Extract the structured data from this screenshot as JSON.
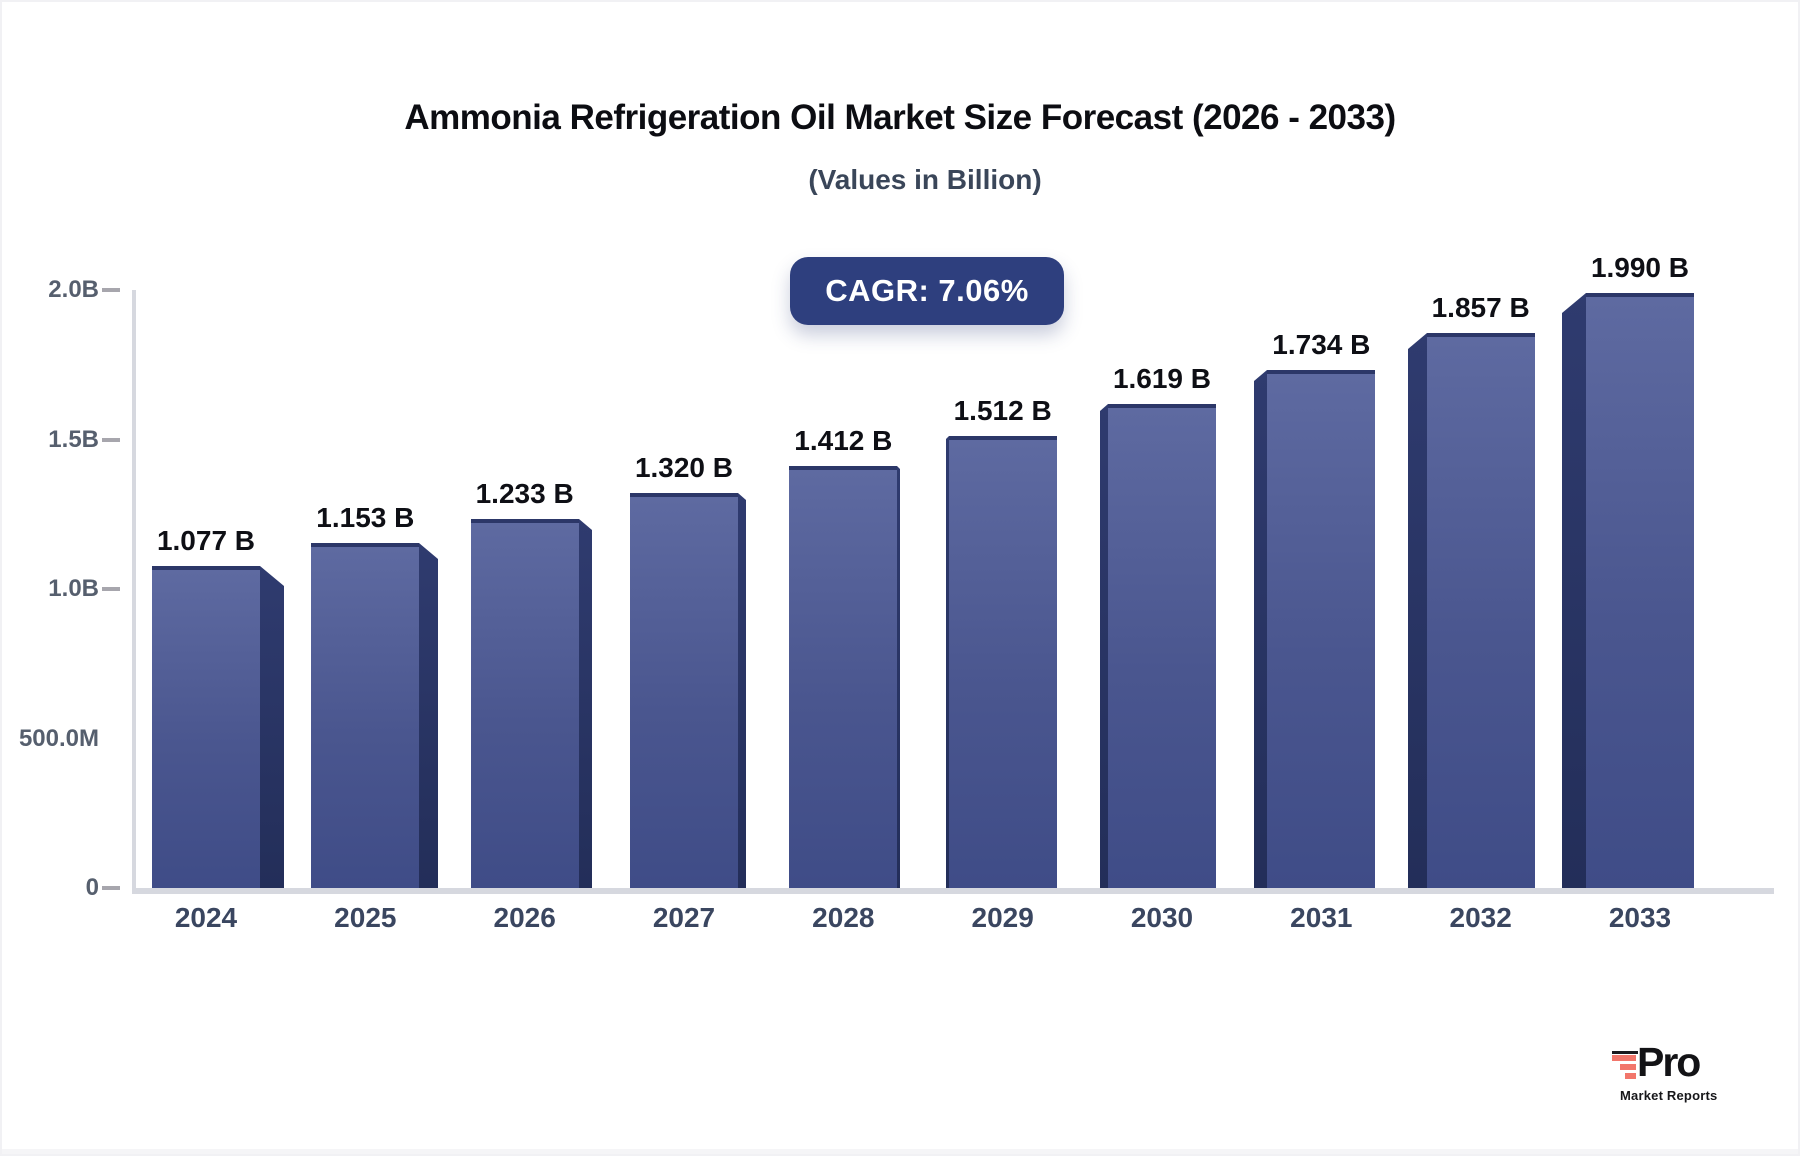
{
  "title": "Ammonia Refrigeration Oil Market Size Forecast (2026 - 2033)",
  "subtitle": "(Values in Billion)",
  "cagr_badge": "CAGR: 7.06%",
  "logo": {
    "name": "Pro",
    "tagline": "Market Reports"
  },
  "colors": {
    "badge_bg": "#2e3f7e",
    "bar_face_top": "#5e6aa1",
    "bar_face_bottom": "#3f4c87",
    "bar_side": "#2b3768",
    "bar_top_edge": "#2c3768",
    "axis_line": "#d6d8df",
    "y_tick_text": "#565f6e",
    "x_tick_text": "#3a4660",
    "value_label_text": "#0e0f15",
    "logo_accent": "#f2766b"
  },
  "chart_data": {
    "type": "bar",
    "title": "Ammonia Refrigeration Oil Market Size Forecast (2026 - 2033)",
    "subtitle": "(Values in Billion)",
    "annotation": "CAGR: 7.06%",
    "xlabel": "",
    "ylabel": "",
    "categories": [
      "2024",
      "2025",
      "2026",
      "2027",
      "2028",
      "2029",
      "2030",
      "2031",
      "2032",
      "2033"
    ],
    "values": [
      1.077,
      1.153,
      1.233,
      1.32,
      1.412,
      1.512,
      1.619,
      1.734,
      1.857,
      1.99
    ],
    "value_labels": [
      "1.077 B",
      "1.153 B",
      "1.233 B",
      "1.320 B",
      "1.412 B",
      "1.512 B",
      "1.619 B",
      "1.734 B",
      "1.857 B",
      "1.990 B"
    ],
    "unit": "Billion USD",
    "ylim": [
      0,
      2.0
    ],
    "y_ticks": [
      {
        "label": "0",
        "value": 0.0,
        "dash": true
      },
      {
        "label": "500.0M",
        "value": 0.5,
        "dash": false
      },
      {
        "label": "1.0B",
        "value": 1.0,
        "dash": true
      },
      {
        "label": "1.5B",
        "value": 1.5,
        "dash": true
      },
      {
        "label": "2.0B",
        "value": 2.0,
        "dash": true
      }
    ],
    "grid": false,
    "legend": "none",
    "bar_style": "3d-perspective"
  }
}
